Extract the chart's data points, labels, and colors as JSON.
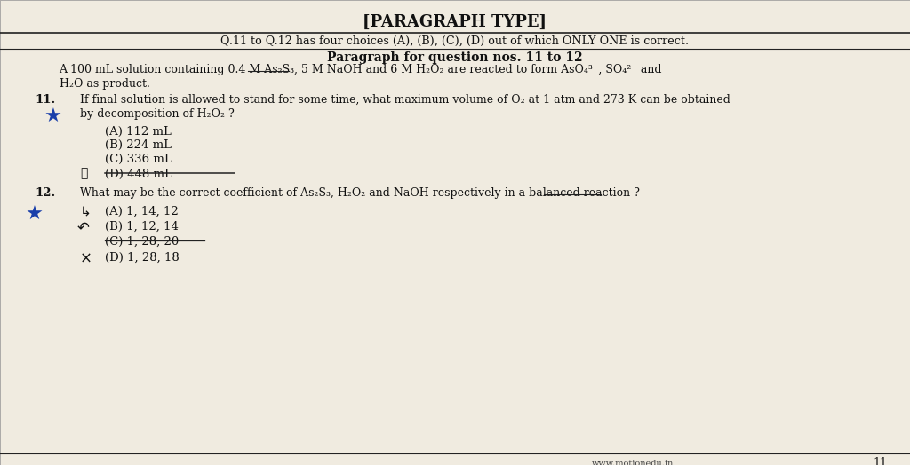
{
  "background_color": "#c8c3bc",
  "paper_color": "#f0ebe0",
  "title": "[PARAGRAPH TYPE]",
  "subtitle": "Q.11 to Q.12 has four choices (A), (B), (C), (D) out of which ONLY ONE is correct.",
  "paragraph_header": "Paragraph for question nos. 11 to 12",
  "para_line1": "A 100 mL solution containing 0.4 M As₂S₃, 5 M NaOH and 6 M H₂O₂ are reacted to form AsO₄³⁻, SO₄²⁻ and",
  "para_line2": "H₂O as product.",
  "q11_num": "11.",
  "q11_line1": "If final solution is allowed to stand for some time, what maximum volume of O₂ at 1 atm and 273 K can be obtained",
  "q11_line2": "by decomposition of H₂O₂ ?",
  "q11_options": [
    "(A) 112 mL",
    "(B) 224 mL",
    "(C) 336 mL",
    "(D) 448 mL"
  ],
  "q12_num": "12.",
  "q12_line": "What may be the correct coefficient of As₂S₃, H₂O₂ and NaOH respectively in a balanced reaction ?",
  "q12_options": [
    "(A) 1, 14, 12",
    "(B) 1, 12, 14",
    "(C) 1, 28, 20",
    "(D) 1, 28, 18"
  ],
  "page_number": "11",
  "font_color": "#111111",
  "star_color": "#1a3faa",
  "line_color": "#222222"
}
